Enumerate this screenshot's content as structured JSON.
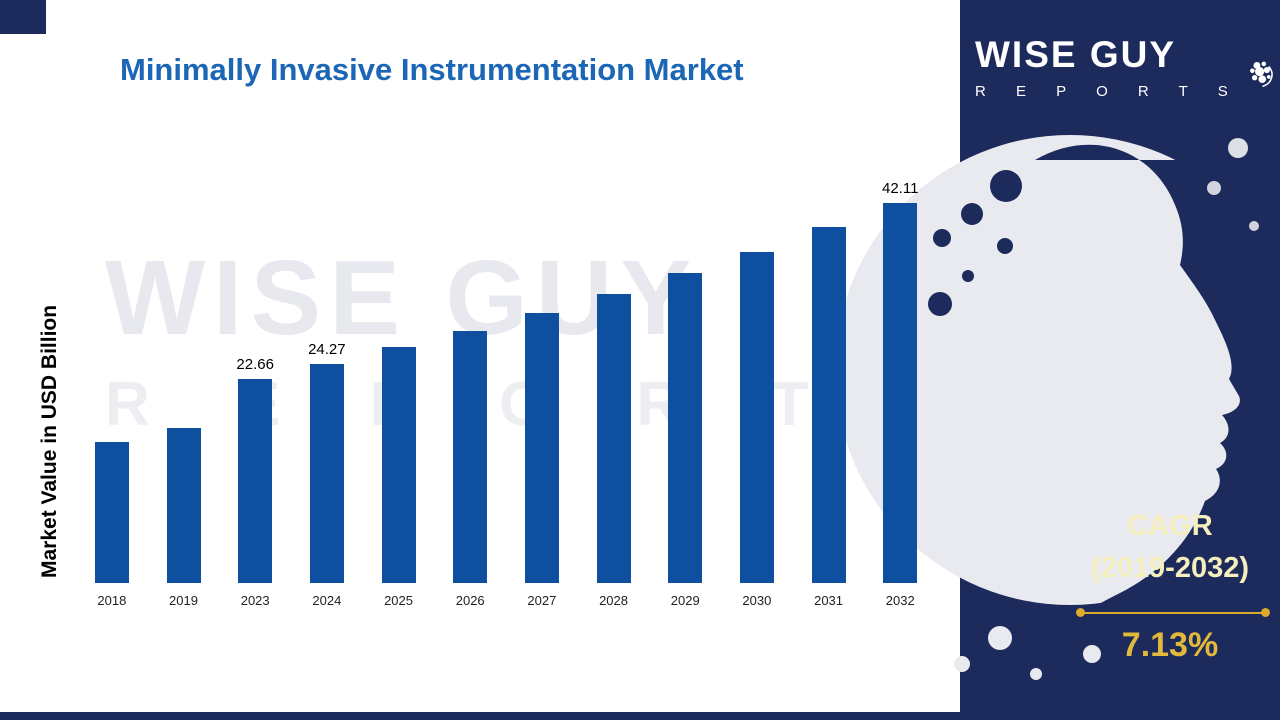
{
  "header": {
    "title": "Minimally Invasive Instrumentation Market"
  },
  "y_axis_label": "Market Value in USD Billion",
  "watermark": {
    "line1": "WISE GUY",
    "line2": "R E P O R T S"
  },
  "brand": {
    "name": "WISE GUY",
    "sub": "R E P O R T S"
  },
  "cagr": {
    "label": "CAGR",
    "range": "(2019-2032)",
    "value": "7.13%"
  },
  "colors": {
    "bar": "#0f4fa0",
    "title": "#1b67b6",
    "sidebar_navy": "#1c2a5c",
    "circle_gray": "#e8eaf0",
    "gold": "#d9ac2e",
    "pale_yellow": "#f5efbe"
  },
  "chart_data": {
    "type": "bar",
    "title": "Minimally Invasive Instrumentation Market",
    "xlabel": "",
    "ylabel": "Market Value in USD Billion",
    "categories": [
      "2018",
      "2019",
      "2023",
      "2024",
      "2025",
      "2026",
      "2027",
      "2028",
      "2029",
      "2030",
      "2031",
      "2032"
    ],
    "values": [
      15.6,
      17.2,
      22.66,
      24.27,
      26.1,
      27.9,
      29.9,
      32.0,
      34.3,
      36.7,
      39.5,
      42.11
    ],
    "data_labels": [
      "",
      "",
      "22.66",
      "24.27",
      "",
      "",
      "",
      "",
      "",
      "",
      "",
      "42.11"
    ],
    "bar_color": "#0f4fa0",
    "ylim": [
      0,
      45
    ],
    "grid": false,
    "legend": false
  }
}
